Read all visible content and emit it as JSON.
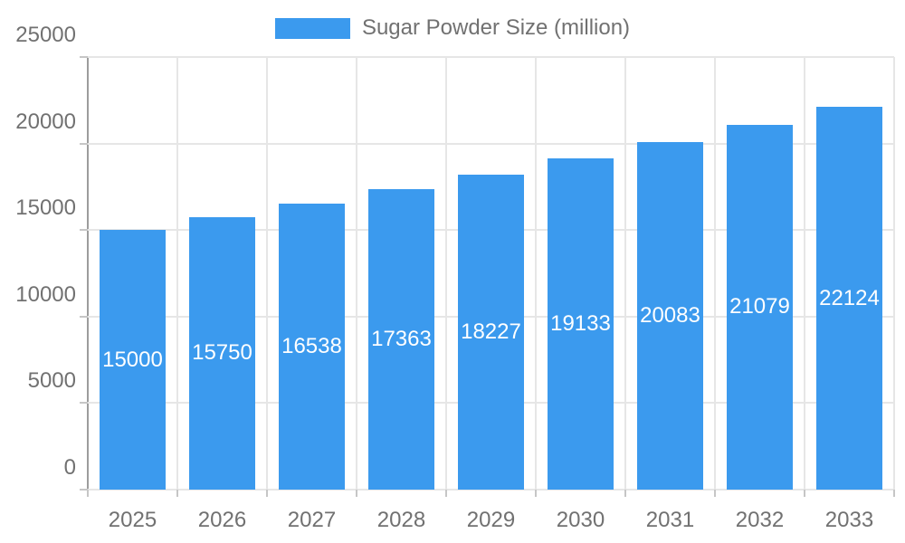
{
  "colors": {
    "bar": "#3B9AEE",
    "grid": "#E6E6E6",
    "axis_line": "#9C9C9C",
    "tick": "#C6C6C6",
    "label_text": "#717171",
    "value_text": "#FFFFFF",
    "background": "#FFFFFF"
  },
  "chart_data": {
    "type": "bar",
    "title": "Sugar Powder Size (million)",
    "categories": [
      "2025",
      "2026",
      "2027",
      "2028",
      "2029",
      "2030",
      "2031",
      "2032",
      "2033"
    ],
    "values": [
      15000,
      15750,
      16538,
      17363,
      18227,
      19133,
      20083,
      21079,
      22124
    ],
    "yticks": [
      0,
      5000,
      10000,
      15000,
      20000,
      25000
    ],
    "ylim": [
      0,
      25000
    ],
    "xlabel": "",
    "ylabel": "",
    "grid": true,
    "legend_position": "top",
    "value_label_position": "inside-center",
    "bar_width_fraction": 0.73
  }
}
